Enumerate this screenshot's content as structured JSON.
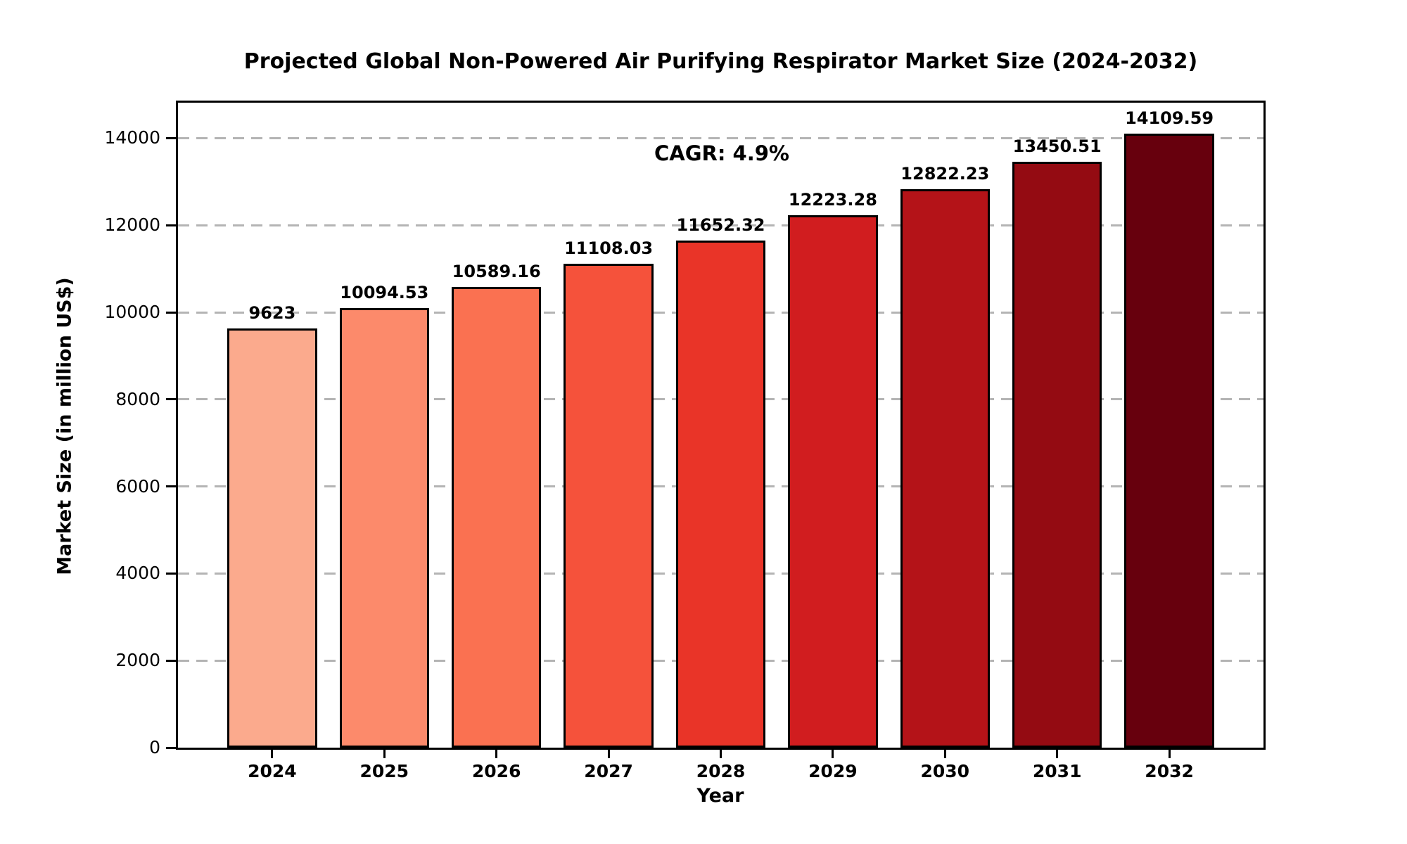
{
  "chart_data": {
    "type": "bar",
    "title": "Projected Global Non-Powered Air Purifying Respirator Market Size (2024-2032)",
    "xlabel": "Year",
    "ylabel": "Market Size (in million US$)",
    "annotation": "CAGR: 4.9%",
    "categories": [
      "2024",
      "2025",
      "2026",
      "2027",
      "2028",
      "2029",
      "2030",
      "2031",
      "2032"
    ],
    "values": [
      9623,
      10094.53,
      10589.16,
      11108.03,
      11652.32,
      12223.28,
      12822.23,
      13450.51,
      14109.59
    ],
    "value_labels": [
      "9623",
      "10094.53",
      "10589.16",
      "11108.03",
      "11652.32",
      "12223.28",
      "12822.23",
      "13450.51",
      "14109.59"
    ],
    "bar_colors": [
      "#fbaa8d",
      "#fc8a6b",
      "#fa7151",
      "#f5523b",
      "#e93428",
      "#d11d1f",
      "#b41318",
      "#940b12",
      "#67000d"
    ],
    "bar_edge_color": "#000000",
    "yticks": [
      0,
      2000,
      4000,
      6000,
      8000,
      10000,
      12000,
      14000
    ],
    "ylim": [
      0,
      14815
    ],
    "grid": "horizontal-dashed",
    "gridline_color": "#b4b4b4",
    "legend": null
  }
}
